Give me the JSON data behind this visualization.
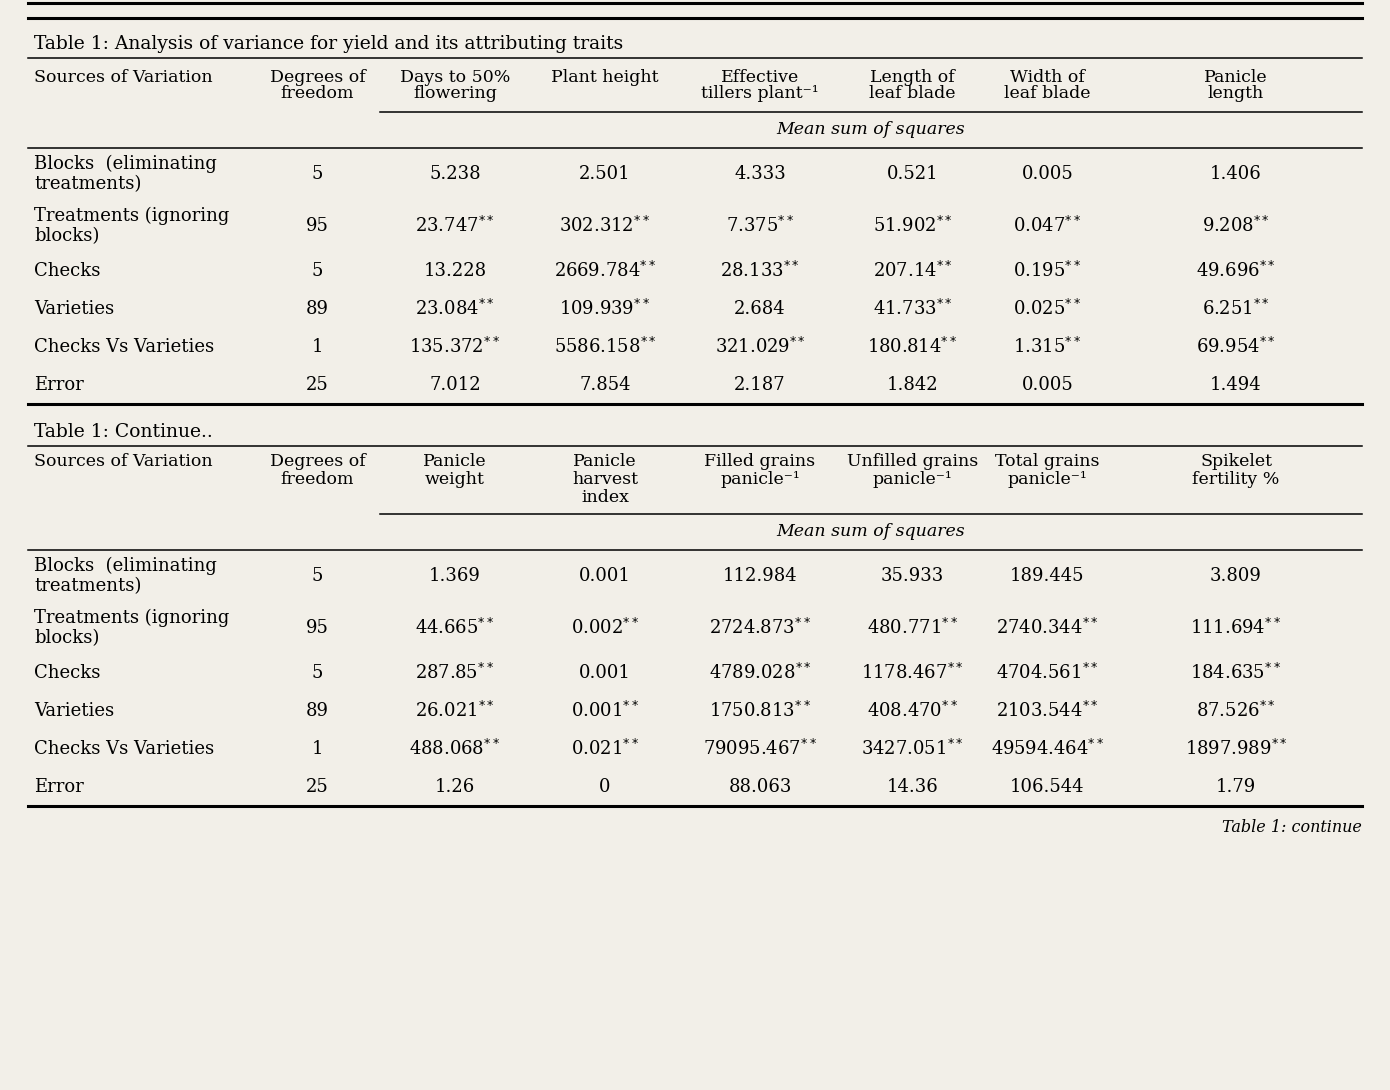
{
  "title1": "Table 1: Analysis of variance for yield and its attributing traits",
  "title2": "Table 1: Continue..",
  "footer": "Table 1: continue",
  "bg_color": "#f2efe8",
  "table1": {
    "col_headers_l1": [
      "Sources of Variation",
      "Degrees of",
      "Days to 50%",
      "Plant height",
      "Effective",
      "Length of",
      "Width of",
      "Panicle"
    ],
    "col_headers_l2": [
      "",
      "freedom",
      "flowering",
      "",
      "tillers plant⁻¹",
      "leaf blade",
      "leaf blade",
      "length"
    ],
    "subheader": "Mean sum of squares",
    "rows": [
      {
        "l1": "Blocks  (eliminating",
        "l2": "treatments)",
        "df": "5",
        "vals": [
          "5.238",
          "2.501",
          "4.333",
          "0.521",
          "0.005",
          "1.406"
        ],
        "sig": [
          "",
          "",
          "",
          "",
          "",
          ""
        ]
      },
      {
        "l1": "Treatments (ignoring",
        "l2": "blocks)",
        "df": "95",
        "vals": [
          "23.747",
          "302.312",
          "7.375",
          "51.902",
          "0.047",
          "9.208"
        ],
        "sig": [
          "**",
          "**",
          "**",
          "**",
          "**",
          "**"
        ]
      },
      {
        "l1": "Checks",
        "l2": "",
        "df": "5",
        "vals": [
          "13.228",
          "2669.784",
          "28.133",
          "207.14",
          "0.195",
          "49.696"
        ],
        "sig": [
          "",
          "**",
          "**",
          "**",
          "**",
          "**"
        ]
      },
      {
        "l1": "Varieties",
        "l2": "",
        "df": "89",
        "vals": [
          "23.084",
          "109.939",
          "2.684",
          "41.733",
          "0.025",
          "6.251"
        ],
        "sig": [
          "**",
          "**",
          "",
          "**",
          "**",
          "**"
        ]
      },
      {
        "l1": "Checks Vs Varieties",
        "l2": "",
        "df": "1",
        "vals": [
          "135.372",
          "5586.158",
          "321.029",
          "180.814",
          "1.315",
          "69.954"
        ],
        "sig": [
          "**",
          "**",
          "**",
          "**",
          "**",
          "**"
        ]
      },
      {
        "l1": "Error",
        "l2": "",
        "df": "25",
        "vals": [
          "7.012",
          "7.854",
          "2.187",
          "1.842",
          "0.005",
          "1.494"
        ],
        "sig": [
          "",
          "",
          "",
          "",
          "",
          ""
        ]
      }
    ]
  },
  "table2": {
    "col_headers_l1": [
      "Sources of Variation",
      "Degrees of",
      "Panicle",
      "Panicle",
      "Filled grains",
      "Unfilled grains",
      "Total grains",
      "Spikelet"
    ],
    "col_headers_l2": [
      "",
      "freedom",
      "weight",
      "harvest",
      "panicle⁻¹",
      "panicle⁻¹",
      "panicle⁻¹",
      "fertility %"
    ],
    "col_headers_l3": [
      "",
      "",
      "",
      "index",
      "",
      "",
      "",
      ""
    ],
    "subheader": "Mean sum of squares",
    "rows": [
      {
        "l1": "Blocks  (eliminating",
        "l2": "treatments)",
        "df": "5",
        "vals": [
          "1.369",
          "0.001",
          "112.984",
          "35.933",
          "189.445",
          "3.809"
        ],
        "sig": [
          "",
          "",
          "",
          "",
          "",
          ""
        ]
      },
      {
        "l1": "Treatments (ignoring",
        "l2": "blocks)",
        "df": "95",
        "vals": [
          "44.665",
          "0.002",
          "2724.873",
          "480.771",
          "2740.344",
          "111.694"
        ],
        "sig": [
          "**",
          "**",
          "**",
          "**",
          "**",
          "**"
        ]
      },
      {
        "l1": "Checks",
        "l2": "",
        "df": "5",
        "vals": [
          "287.85",
          "0.001",
          "4789.028",
          "1178.467",
          "4704.561",
          "184.635"
        ],
        "sig": [
          "**",
          "",
          "**",
          "**",
          "**",
          "**"
        ]
      },
      {
        "l1": "Varieties",
        "l2": "",
        "df": "89",
        "vals": [
          "26.021",
          "0.001",
          "1750.813",
          "408.470",
          "2103.544",
          "87.526"
        ],
        "sig": [
          "**",
          "**",
          "**",
          "**",
          "**",
          "**"
        ]
      },
      {
        "l1": "Checks Vs Varieties",
        "l2": "",
        "df": "1",
        "vals": [
          "488.068",
          "0.021",
          "79095.467",
          "3427.051",
          "49594.464",
          "1897.989"
        ],
        "sig": [
          "**",
          "**",
          "**",
          "**",
          "**",
          "**"
        ]
      },
      {
        "l1": "Error",
        "l2": "",
        "df": "25",
        "vals": [
          "1.26",
          "0",
          "88.063",
          "14.36",
          "106.544",
          "1.79"
        ],
        "sig": [
          "",
          "",
          "",
          "",
          "",
          ""
        ]
      }
    ]
  }
}
